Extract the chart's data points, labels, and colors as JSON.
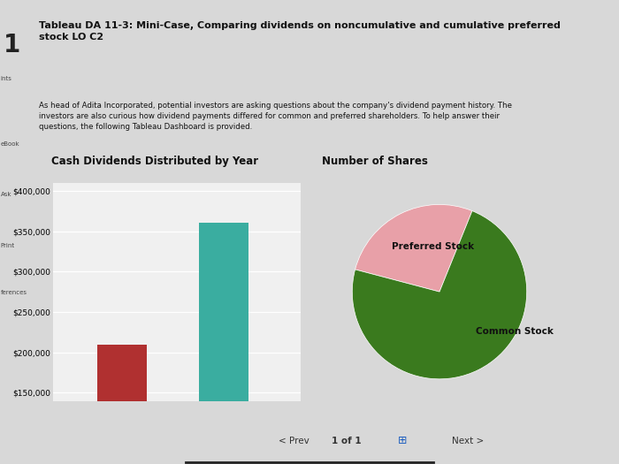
{
  "title": "Tableau DA 11-3: Mini-Case, Comparing dividends on noncumulative and cumulative preferred\nstock LO C2",
  "description": "As head of Adita Incorporated, potential investors are asking questions about the company's dividend payment history. The\ninvestors are also curious how dividend payments differed for common and preferred shareholders. To help answer their\nquestions, the following Tableau Dashboard is provided.",
  "bar_title": "Cash Dividends Distributed by Year",
  "pie_title": "Number of Shares",
  "bar_values": [
    210000,
    360000
  ],
  "bar_colors": [
    "#b03030",
    "#3aada0"
  ],
  "ylim_min": 140000,
  "ylim_max": 410000,
  "yticks": [
    150000,
    200000,
    250000,
    300000,
    350000,
    400000
  ],
  "ytick_labels": [
    "$150,000",
    "$200,000",
    "$250,000",
    "$300,000",
    "$350,000",
    "$400,000"
  ],
  "pie_labels": [
    "Preferred Stock",
    "Common Stock"
  ],
  "pie_sizes": [
    27,
    73
  ],
  "pie_colors": [
    "#e8a0a8",
    "#3a7a1e"
  ],
  "pie_startangle": 68,
  "bg_color": "#d8d8d8",
  "content_bg": "#f0f0f0",
  "page_num_label": "1 of 1",
  "number_label": "1",
  "sidebar_labels": [
    "ints",
    "eBook",
    "Ask",
    "Print",
    "ferences"
  ]
}
